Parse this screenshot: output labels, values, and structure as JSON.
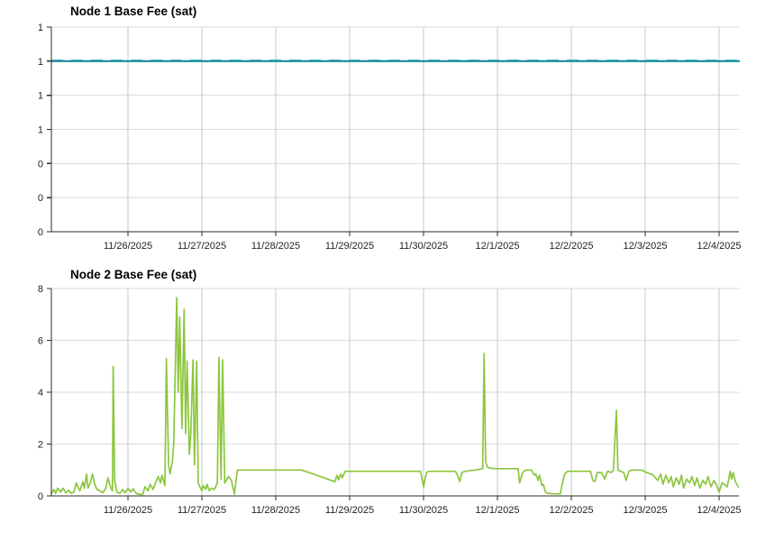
{
  "page": {
    "background_color": "#ffffff"
  },
  "chart_data": [
    {
      "type": "line",
      "title": "Node 1 Base Fee (sat)",
      "xlabel": "",
      "ylabel": "",
      "x_tick_labels": [
        "11/26/2025",
        "11/27/2025",
        "11/28/2025",
        "11/29/2025",
        "11/30/2025",
        "12/1/2025",
        "12/2/2025",
        "12/3/2025",
        "12/4/2025"
      ],
      "y_tick_labels": [
        "1",
        "1",
        "1",
        "1",
        "0",
        "0",
        "0"
      ],
      "y_tick_values": [
        1.2,
        1.0,
        0.8,
        0.6,
        0.4,
        0.2,
        0
      ],
      "y_range": [
        0,
        1.2
      ],
      "grid": true,
      "legend": "none",
      "series": [
        {
          "name": "node1-base-fee",
          "color": "#12899a",
          "dash_overlay_color": "#5ab3bd",
          "stroke_width": 2.2,
          "points": [
            [
              -0.04,
              1.0
            ],
            [
              9.27,
              1.0
            ]
          ]
        }
      ]
    },
    {
      "type": "line",
      "title": "Node 2 Base Fee (sat)",
      "xlabel": "",
      "ylabel": "",
      "x_tick_labels": [
        "11/26/2025",
        "11/27/2025",
        "11/28/2025",
        "11/29/2025",
        "11/30/2025",
        "12/1/2025",
        "12/2/2025",
        "12/3/2025",
        "12/4/2025"
      ],
      "y_tick_labels": [
        "8",
        "6",
        "4",
        "2",
        "0"
      ],
      "y_tick_values": [
        8,
        6,
        4,
        2,
        0
      ],
      "y_range": [
        0,
        8
      ],
      "grid": true,
      "legend": "none",
      "series": [
        {
          "name": "node2-base-fee",
          "color": "#8cc63e",
          "stroke_width": 1.7,
          "points": [
            [
              -0.04,
              0.1
            ],
            [
              0.0,
              0.25
            ],
            [
              0.02,
              0.1
            ],
            [
              0.05,
              0.3
            ],
            [
              0.09,
              0.15
            ],
            [
              0.12,
              0.3
            ],
            [
              0.16,
              0.12
            ],
            [
              0.2,
              0.22
            ],
            [
              0.23,
              0.1
            ],
            [
              0.27,
              0.15
            ],
            [
              0.3,
              0.5
            ],
            [
              0.33,
              0.3
            ],
            [
              0.35,
              0.2
            ],
            [
              0.39,
              0.55
            ],
            [
              0.41,
              0.3
            ],
            [
              0.44,
              0.85
            ],
            [
              0.46,
              0.3
            ],
            [
              0.49,
              0.5
            ],
            [
              0.52,
              0.85
            ],
            [
              0.55,
              0.45
            ],
            [
              0.58,
              0.25
            ],
            [
              0.62,
              0.2
            ],
            [
              0.66,
              0.12
            ],
            [
              0.7,
              0.3
            ],
            [
              0.73,
              0.7
            ],
            [
              0.77,
              0.3
            ],
            [
              0.79,
              0.2
            ],
            [
              0.8,
              5.0
            ],
            [
              0.82,
              0.6
            ],
            [
              0.85,
              0.15
            ],
            [
              0.89,
              0.1
            ],
            [
              0.93,
              0.25
            ],
            [
              0.96,
              0.12
            ],
            [
              1.0,
              0.3
            ],
            [
              1.04,
              0.15
            ],
            [
              1.07,
              0.28
            ],
            [
              1.11,
              0.1
            ],
            [
              1.15,
              0.06
            ],
            [
              1.2,
              0.06
            ],
            [
              1.23,
              0.35
            ],
            [
              1.27,
              0.2
            ],
            [
              1.3,
              0.45
            ],
            [
              1.34,
              0.25
            ],
            [
              1.38,
              0.55
            ],
            [
              1.41,
              0.75
            ],
            [
              1.44,
              0.5
            ],
            [
              1.46,
              0.8
            ],
            [
              1.5,
              0.4
            ],
            [
              1.52,
              5.3
            ],
            [
              1.55,
              1.2
            ],
            [
              1.57,
              0.85
            ],
            [
              1.6,
              1.3
            ],
            [
              1.62,
              2.0
            ],
            [
              1.66,
              7.65
            ],
            [
              1.68,
              4.0
            ],
            [
              1.7,
              6.9
            ],
            [
              1.73,
              2.6
            ],
            [
              1.76,
              7.2
            ],
            [
              1.78,
              2.4
            ],
            [
              1.8,
              5.2
            ],
            [
              1.83,
              1.6
            ],
            [
              1.85,
              2.4
            ],
            [
              1.88,
              5.25
            ],
            [
              1.9,
              1.2
            ],
            [
              1.93,
              5.2
            ],
            [
              1.95,
              0.5
            ],
            [
              1.98,
              0.3
            ],
            [
              2.0,
              0.2
            ],
            [
              2.02,
              0.4
            ],
            [
              2.05,
              0.25
            ],
            [
              2.07,
              0.45
            ],
            [
              2.1,
              0.2
            ],
            [
              2.13,
              0.3
            ],
            [
              2.17,
              0.25
            ],
            [
              2.21,
              0.5
            ],
            [
              2.23,
              5.35
            ],
            [
              2.26,
              0.65
            ],
            [
              2.28,
              5.25
            ],
            [
              2.31,
              0.5
            ],
            [
              2.36,
              0.75
            ],
            [
              2.4,
              0.6
            ],
            [
              2.44,
              0.08
            ],
            [
              2.48,
              1.0
            ],
            [
              2.6,
              1.0
            ],
            [
              2.8,
              1.0
            ],
            [
              3.0,
              1.0
            ],
            [
              3.2,
              1.0
            ],
            [
              3.35,
              1.0
            ],
            [
              3.45,
              0.9
            ],
            [
              3.6,
              0.75
            ],
            [
              3.8,
              0.55
            ],
            [
              3.83,
              0.8
            ],
            [
              3.85,
              0.62
            ],
            [
              3.88,
              0.85
            ],
            [
              3.9,
              0.7
            ],
            [
              3.94,
              0.95
            ],
            [
              4.1,
              0.95
            ],
            [
              4.3,
              0.95
            ],
            [
              4.6,
              0.95
            ],
            [
              4.96,
              0.95
            ],
            [
              5.0,
              0.35
            ],
            [
              5.04,
              0.9
            ],
            [
              5.07,
              0.95
            ],
            [
              5.3,
              0.95
            ],
            [
              5.43,
              0.95
            ],
            [
              5.46,
              0.8
            ],
            [
              5.49,
              0.55
            ],
            [
              5.52,
              0.9
            ],
            [
              5.56,
              0.95
            ],
            [
              5.7,
              1.0
            ],
            [
              5.8,
              1.05
            ],
            [
              5.82,
              5.5
            ],
            [
              5.84,
              1.3
            ],
            [
              5.87,
              1.1
            ],
            [
              5.95,
              1.05
            ],
            [
              6.1,
              1.05
            ],
            [
              6.28,
              1.05
            ],
            [
              6.3,
              0.5
            ],
            [
              6.34,
              0.9
            ],
            [
              6.38,
              1.0
            ],
            [
              6.46,
              1.0
            ],
            [
              6.5,
              0.8
            ],
            [
              6.52,
              0.85
            ],
            [
              6.55,
              0.6
            ],
            [
              6.57,
              0.8
            ],
            [
              6.6,
              0.4
            ],
            [
              6.62,
              0.45
            ],
            [
              6.65,
              0.15
            ],
            [
              6.68,
              0.1
            ],
            [
              6.77,
              0.08
            ],
            [
              6.85,
              0.08
            ],
            [
              6.88,
              0.5
            ],
            [
              6.91,
              0.85
            ],
            [
              6.95,
              0.95
            ],
            [
              7.1,
              0.95
            ],
            [
              7.26,
              0.95
            ],
            [
              7.29,
              0.6
            ],
            [
              7.32,
              0.55
            ],
            [
              7.35,
              0.9
            ],
            [
              7.41,
              0.9
            ],
            [
              7.45,
              0.65
            ],
            [
              7.49,
              0.95
            ],
            [
              7.54,
              0.9
            ],
            [
              7.57,
              1.0
            ],
            [
              7.61,
              3.3
            ],
            [
              7.63,
              1.0
            ],
            [
              7.67,
              0.95
            ],
            [
              7.71,
              0.9
            ],
            [
              7.74,
              0.6
            ],
            [
              7.78,
              0.95
            ],
            [
              7.82,
              1.0
            ],
            [
              7.95,
              1.0
            ],
            [
              8.02,
              0.9
            ],
            [
              8.1,
              0.82
            ],
            [
              8.17,
              0.6
            ],
            [
              8.21,
              0.85
            ],
            [
              8.24,
              0.45
            ],
            [
              8.28,
              0.8
            ],
            [
              8.32,
              0.5
            ],
            [
              8.35,
              0.75
            ],
            [
              8.38,
              0.35
            ],
            [
              8.42,
              0.7
            ],
            [
              8.46,
              0.45
            ],
            [
              8.49,
              0.8
            ],
            [
              8.52,
              0.3
            ],
            [
              8.56,
              0.65
            ],
            [
              8.6,
              0.5
            ],
            [
              8.63,
              0.75
            ],
            [
              8.67,
              0.4
            ],
            [
              8.7,
              0.7
            ],
            [
              8.74,
              0.3
            ],
            [
              8.78,
              0.6
            ],
            [
              8.82,
              0.45
            ],
            [
              8.85,
              0.75
            ],
            [
              8.89,
              0.35
            ],
            [
              8.93,
              0.6
            ],
            [
              8.96,
              0.45
            ],
            [
              9.0,
              0.15
            ],
            [
              9.04,
              0.5
            ],
            [
              9.07,
              0.45
            ],
            [
              9.11,
              0.35
            ],
            [
              9.15,
              0.95
            ],
            [
              9.17,
              0.65
            ],
            [
              9.19,
              0.9
            ],
            [
              9.22,
              0.55
            ],
            [
              9.26,
              0.35
            ]
          ]
        }
      ]
    }
  ]
}
